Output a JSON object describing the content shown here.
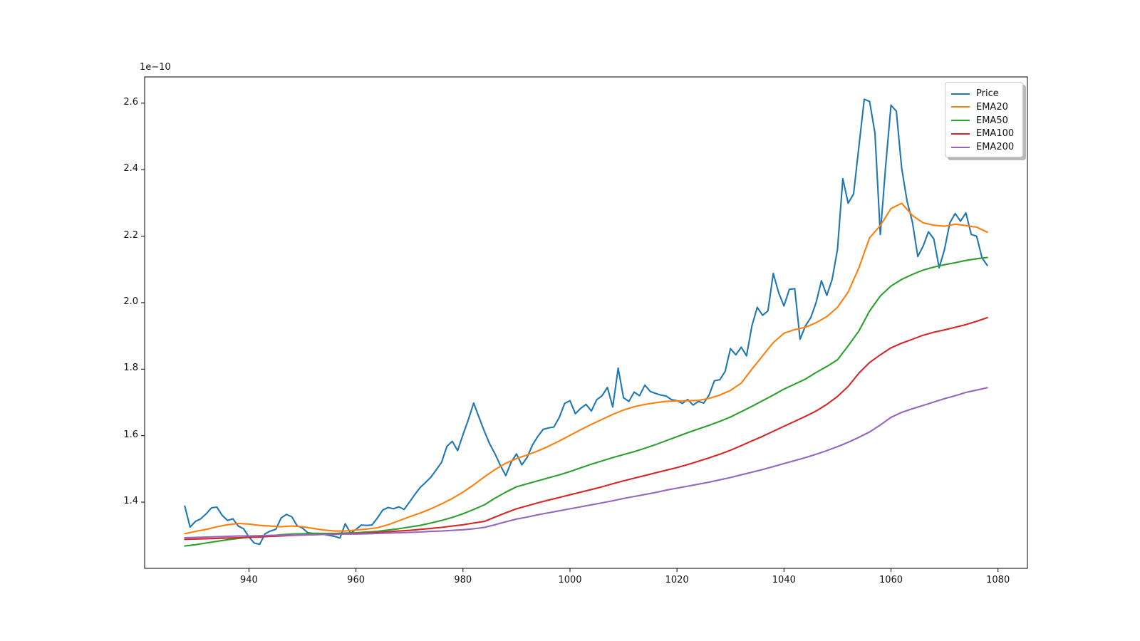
{
  "figure": {
    "background": "#ffffff"
  },
  "chart_data": {
    "type": "line",
    "title": "",
    "xlabel": "",
    "ylabel": "",
    "y_offset_label": "1e−10",
    "xlim": [
      920.5,
      1085.5
    ],
    "ylim": [
      1.2008,
      2.679
    ],
    "x_ticks": [
      940,
      960,
      980,
      1000,
      1020,
      1040,
      1060,
      1080
    ],
    "y_ticks": [
      1.4,
      1.6,
      1.8,
      2.0,
      2.2,
      2.4,
      2.6
    ],
    "grid": false,
    "axes_color": "#000000",
    "legend": {
      "position": "upper right",
      "entries": [
        "Price",
        "EMA20",
        "EMA50",
        "EMA100",
        "EMA200"
      ]
    },
    "series": [
      {
        "name": "Price",
        "color": "#1f77b4",
        "x_start": 928,
        "x_step": 1,
        "values": [
          1.388,
          1.325,
          1.342,
          1.35,
          1.365,
          1.383,
          1.385,
          1.36,
          1.345,
          1.35,
          1.328,
          1.32,
          1.295,
          1.277,
          1.273,
          1.305,
          1.313,
          1.318,
          1.352,
          1.363,
          1.356,
          1.329,
          1.322,
          1.308,
          1.306,
          1.306,
          1.303,
          1.3,
          1.297,
          1.292,
          1.335,
          1.306,
          1.318,
          1.331,
          1.33,
          1.331,
          1.352,
          1.376,
          1.384,
          1.38,
          1.386,
          1.378,
          1.4,
          1.423,
          1.444,
          1.459,
          1.475,
          1.497,
          1.52,
          1.568,
          1.583,
          1.555,
          1.603,
          1.648,
          1.698,
          1.655,
          1.613,
          1.575,
          1.545,
          1.51,
          1.48,
          1.52,
          1.545,
          1.512,
          1.535,
          1.572,
          1.598,
          1.619,
          1.623,
          1.626,
          1.655,
          1.697,
          1.705,
          1.666,
          1.682,
          1.694,
          1.674,
          1.708,
          1.72,
          1.745,
          1.686,
          1.803,
          1.714,
          1.703,
          1.731,
          1.72,
          1.752,
          1.733,
          1.727,
          1.722,
          1.719,
          1.708,
          1.705,
          1.697,
          1.709,
          1.692,
          1.703,
          1.698,
          1.722,
          1.765,
          1.768,
          1.793,
          1.862,
          1.843,
          1.866,
          1.84,
          1.93,
          1.986,
          1.962,
          1.975,
          2.088,
          2.03,
          1.99,
          2.04,
          2.042,
          1.89,
          1.93,
          1.955,
          2.0,
          2.066,
          2.022,
          2.07,
          2.16,
          2.373,
          2.299,
          2.327,
          2.47,
          2.612,
          2.605,
          2.51,
          2.205,
          2.41,
          2.594,
          2.576,
          2.405,
          2.306,
          2.242,
          2.139,
          2.17,
          2.213,
          2.192,
          2.105,
          2.16,
          2.24,
          2.268,
          2.245,
          2.27,
          2.205,
          2.2,
          2.135,
          2.112
        ]
      },
      {
        "name": "EMA20",
        "color": "#ff7f0e",
        "x_start": 928,
        "x_step": 2,
        "values": [
          1.305,
          1.312,
          1.318,
          1.326,
          1.332,
          1.336,
          1.334,
          1.33,
          1.328,
          1.326,
          1.328,
          1.326,
          1.321,
          1.316,
          1.313,
          1.313,
          1.316,
          1.319,
          1.323,
          1.332,
          1.344,
          1.356,
          1.367,
          1.38,
          1.395,
          1.411,
          1.43,
          1.452,
          1.476,
          1.498,
          1.517,
          1.531,
          1.542,
          1.554,
          1.568,
          1.584,
          1.601,
          1.618,
          1.634,
          1.649,
          1.664,
          1.677,
          1.687,
          1.694,
          1.699,
          1.703,
          1.704,
          1.705,
          1.706,
          1.712,
          1.722,
          1.736,
          1.758,
          1.8,
          1.84,
          1.88,
          1.908,
          1.919,
          1.926,
          1.94,
          1.958,
          1.986,
          2.032,
          2.105,
          2.195,
          2.232,
          2.283,
          2.299,
          2.262,
          2.24,
          2.233,
          2.23,
          2.236,
          2.232,
          2.227,
          2.212
        ]
      },
      {
        "name": "EMA50",
        "color": "#2ca02c",
        "x_start": 928,
        "x_step": 2,
        "values": [
          1.268,
          1.272,
          1.277,
          1.282,
          1.287,
          1.291,
          1.294,
          1.297,
          1.299,
          1.302,
          1.304,
          1.305,
          1.306,
          1.306,
          1.306,
          1.307,
          1.308,
          1.31,
          1.312,
          1.316,
          1.32,
          1.325,
          1.33,
          1.337,
          1.345,
          1.354,
          1.365,
          1.378,
          1.392,
          1.412,
          1.43,
          1.446,
          1.455,
          1.464,
          1.473,
          1.482,
          1.492,
          1.503,
          1.514,
          1.524,
          1.534,
          1.543,
          1.552,
          1.562,
          1.573,
          1.585,
          1.597,
          1.609,
          1.62,
          1.631,
          1.643,
          1.656,
          1.672,
          1.688,
          1.705,
          1.722,
          1.74,
          1.755,
          1.77,
          1.79,
          1.808,
          1.828,
          1.87,
          1.915,
          1.975,
          2.02,
          2.05,
          2.07,
          2.085,
          2.098,
          2.107,
          2.114,
          2.12,
          2.127,
          2.132,
          2.136
        ]
      },
      {
        "name": "EMA100",
        "color": "#d62728",
        "x_start": 928,
        "x_step": 2,
        "values": [
          1.288,
          1.289,
          1.29,
          1.291,
          1.292,
          1.293,
          1.294,
          1.295,
          1.297,
          1.298,
          1.3,
          1.301,
          1.302,
          1.303,
          1.304,
          1.305,
          1.306,
          1.307,
          1.309,
          1.311,
          1.313,
          1.315,
          1.318,
          1.321,
          1.324,
          1.328,
          1.332,
          1.337,
          1.342,
          1.355,
          1.368,
          1.38,
          1.389,
          1.398,
          1.406,
          1.414,
          1.422,
          1.43,
          1.438,
          1.446,
          1.455,
          1.464,
          1.472,
          1.48,
          1.488,
          1.496,
          1.504,
          1.513,
          1.523,
          1.533,
          1.544,
          1.556,
          1.57,
          1.584,
          1.598,
          1.613,
          1.628,
          1.643,
          1.658,
          1.674,
          1.694,
          1.718,
          1.748,
          1.788,
          1.82,
          1.843,
          1.864,
          1.878,
          1.89,
          1.902,
          1.911,
          1.918,
          1.926,
          1.934,
          1.944,
          1.955
        ]
      },
      {
        "name": "EMA200",
        "color": "#9467bd",
        "x_start": 928,
        "x_step": 2,
        "values": [
          1.293,
          1.294,
          1.295,
          1.296,
          1.297,
          1.298,
          1.298,
          1.299,
          1.3,
          1.3,
          1.301,
          1.302,
          1.302,
          1.303,
          1.303,
          1.304,
          1.304,
          1.305,
          1.306,
          1.307,
          1.308,
          1.309,
          1.31,
          1.312,
          1.313,
          1.315,
          1.317,
          1.32,
          1.324,
          1.332,
          1.341,
          1.349,
          1.355,
          1.362,
          1.368,
          1.374,
          1.38,
          1.386,
          1.392,
          1.398,
          1.404,
          1.411,
          1.417,
          1.423,
          1.429,
          1.436,
          1.442,
          1.448,
          1.454,
          1.46,
          1.467,
          1.474,
          1.482,
          1.49,
          1.498,
          1.507,
          1.516,
          1.525,
          1.534,
          1.544,
          1.555,
          1.567,
          1.58,
          1.595,
          1.611,
          1.632,
          1.655,
          1.67,
          1.681,
          1.691,
          1.701,
          1.711,
          1.72,
          1.73,
          1.737,
          1.744
        ]
      }
    ]
  }
}
